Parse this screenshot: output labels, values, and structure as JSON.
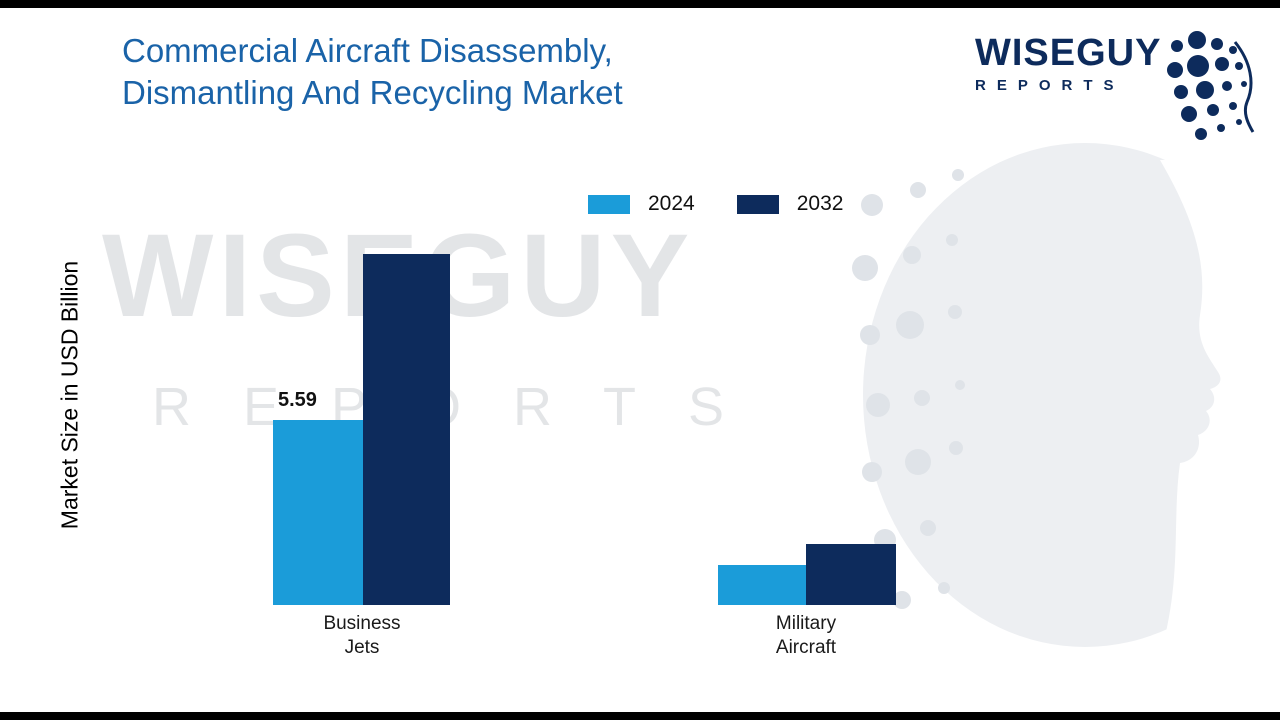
{
  "title": "Commercial Aircraft Disassembly, Dismantling And Recycling Market",
  "logo": {
    "brand": "WISEGUY",
    "subtitle": "REPORTS"
  },
  "watermark": {
    "brand": "WISEGUY",
    "subtitle": "REPORTS"
  },
  "colors": {
    "title": "#1a63a8",
    "series_2024": "#1b9cd9",
    "series_2032": "#0d2b5c",
    "logo": "#0d2b5c"
  },
  "chart_data": {
    "type": "bar",
    "title": "Commercial Aircraft Disassembly, Dismantling And Recycling Market",
    "xlabel": "",
    "ylabel": "Market Size in USD Billion",
    "categories": [
      "Business Jets",
      "Military Aircraft"
    ],
    "series": [
      {
        "name": "2024",
        "color": "#1b9cd9",
        "values": [
          5.59,
          1.2
        ]
      },
      {
        "name": "2032",
        "color": "#0d2b5c",
        "values": [
          10.6,
          1.85
        ]
      }
    ],
    "value_labels": {
      "business_jets_2024": "5.59"
    },
    "ylim": [
      0,
      11
    ],
    "grid": false,
    "legend_position": "top-center"
  }
}
